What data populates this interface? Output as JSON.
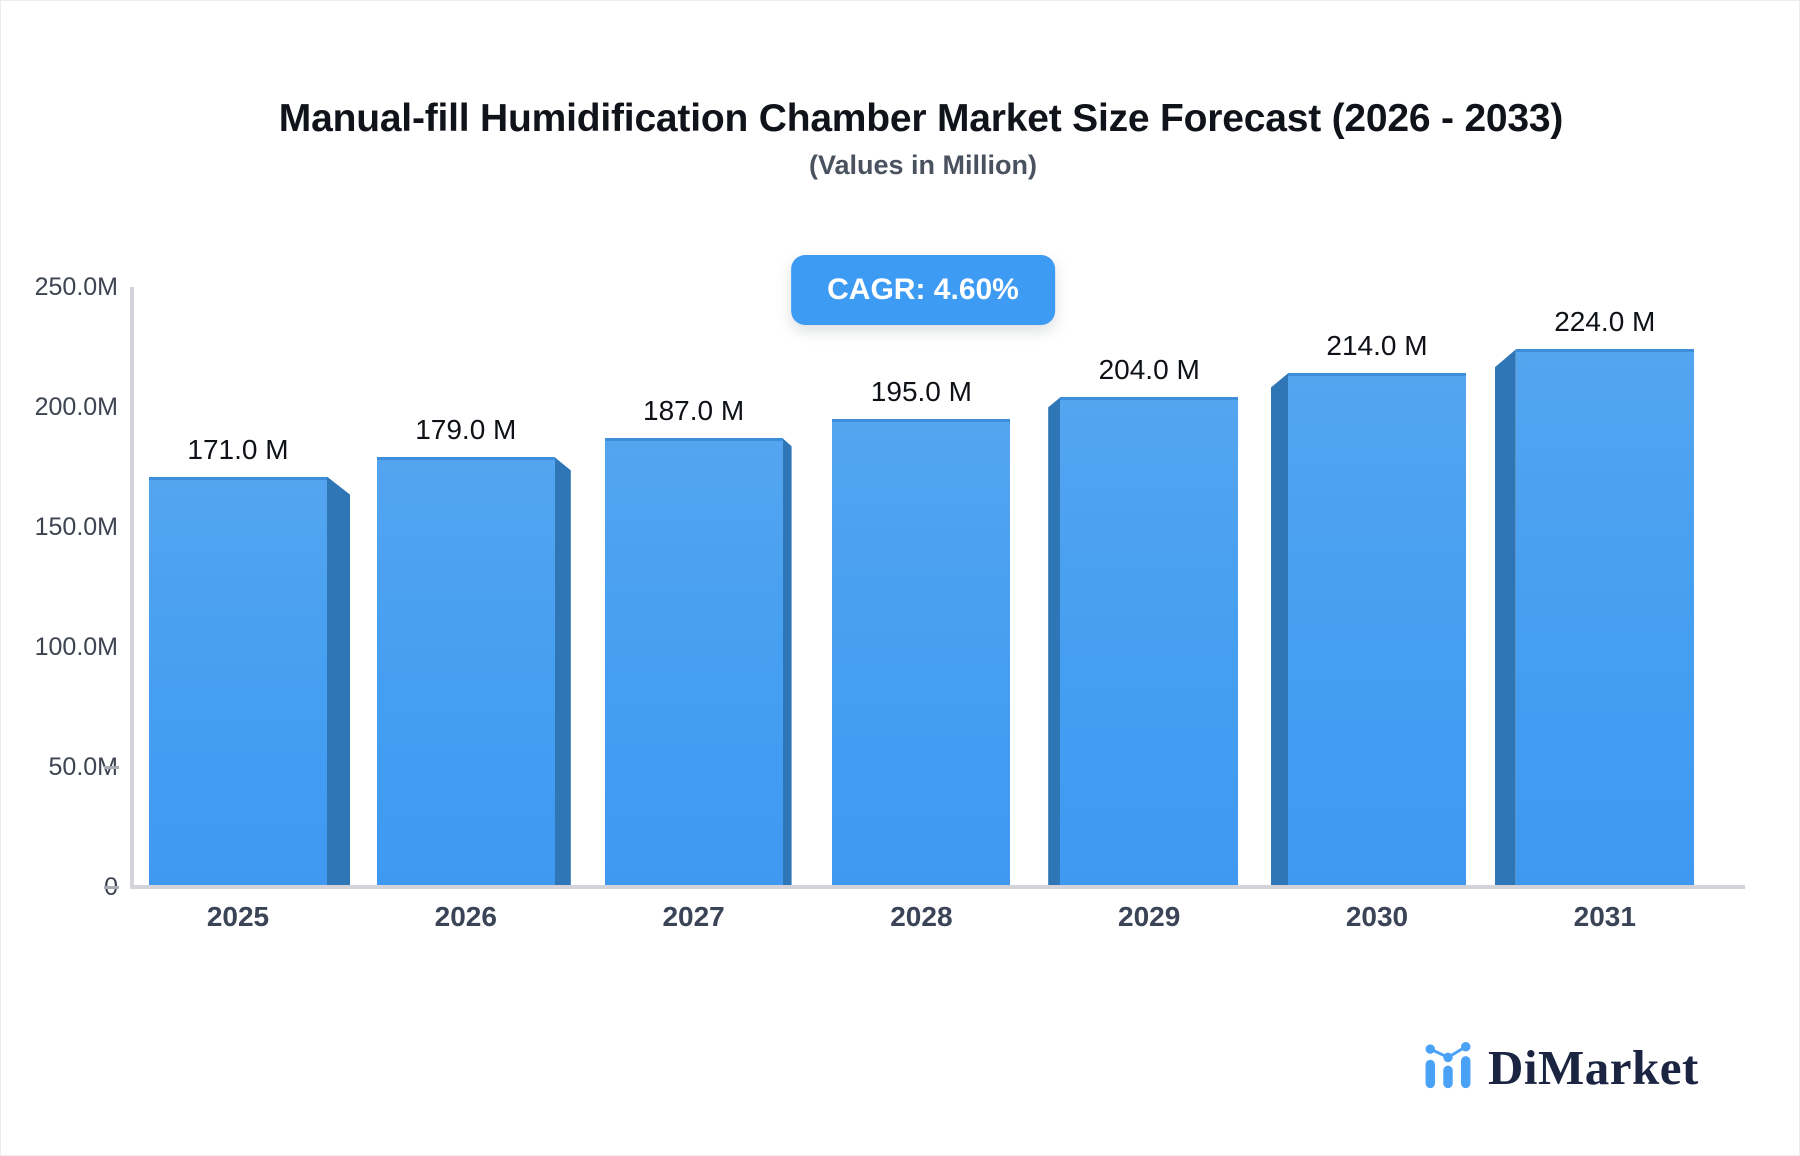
{
  "header": {
    "title": "Manual-fill Humidification Chamber Market Size Forecast (2026 - 2033)",
    "subtitle": "(Values in Million)",
    "cagr_badge": "CAGR: 4.60%"
  },
  "chart_data": {
    "type": "bar",
    "title": "Manual-fill Humidification Chamber Market Size Forecast (2026 - 2033)",
    "subtitle": "(Values in Million)",
    "unit": "Million",
    "categories": [
      "2025",
      "2026",
      "2027",
      "2028",
      "2029",
      "2030",
      "2031"
    ],
    "values": [
      171,
      179,
      187,
      195,
      204,
      214,
      224
    ],
    "bar_labels": [
      "171.0 M",
      "179.0 M",
      "187.0 M",
      "195.0 M",
      "204.0 M",
      "214.0 M",
      "224.0 M"
    ],
    "cagr_percent": "4.60%",
    "ylim": [
      0,
      250
    ],
    "y_ticks": [
      {
        "label": "250.0M",
        "value": 250,
        "dash": false
      },
      {
        "label": "200.0M",
        "value": 200,
        "dash": false
      },
      {
        "label": "150.0M",
        "value": 150,
        "dash": false
      },
      {
        "label": "100.0M",
        "value": 100,
        "dash": false
      },
      {
        "label": "50.0M",
        "value": 50,
        "dash": true
      },
      {
        "label": "0",
        "value": 0,
        "dash": true
      }
    ],
    "grid": false,
    "legend": false,
    "bar_style": "3d-perspective"
  },
  "footer": {
    "logo_text": "DiMarket"
  },
  "colors": {
    "accent": "#3d9bf4",
    "bar_face_top": "#54a5f0",
    "bar_face_bottom": "#3f99f1",
    "bar_side": "#2e76b5",
    "axis_line": "#d3d3d9",
    "value_label": "#0e1116",
    "axis_label": "#3b4356",
    "title_color": "#101319",
    "logo_navy": "#1b2542",
    "logo_blue": "#4aa2f7"
  }
}
